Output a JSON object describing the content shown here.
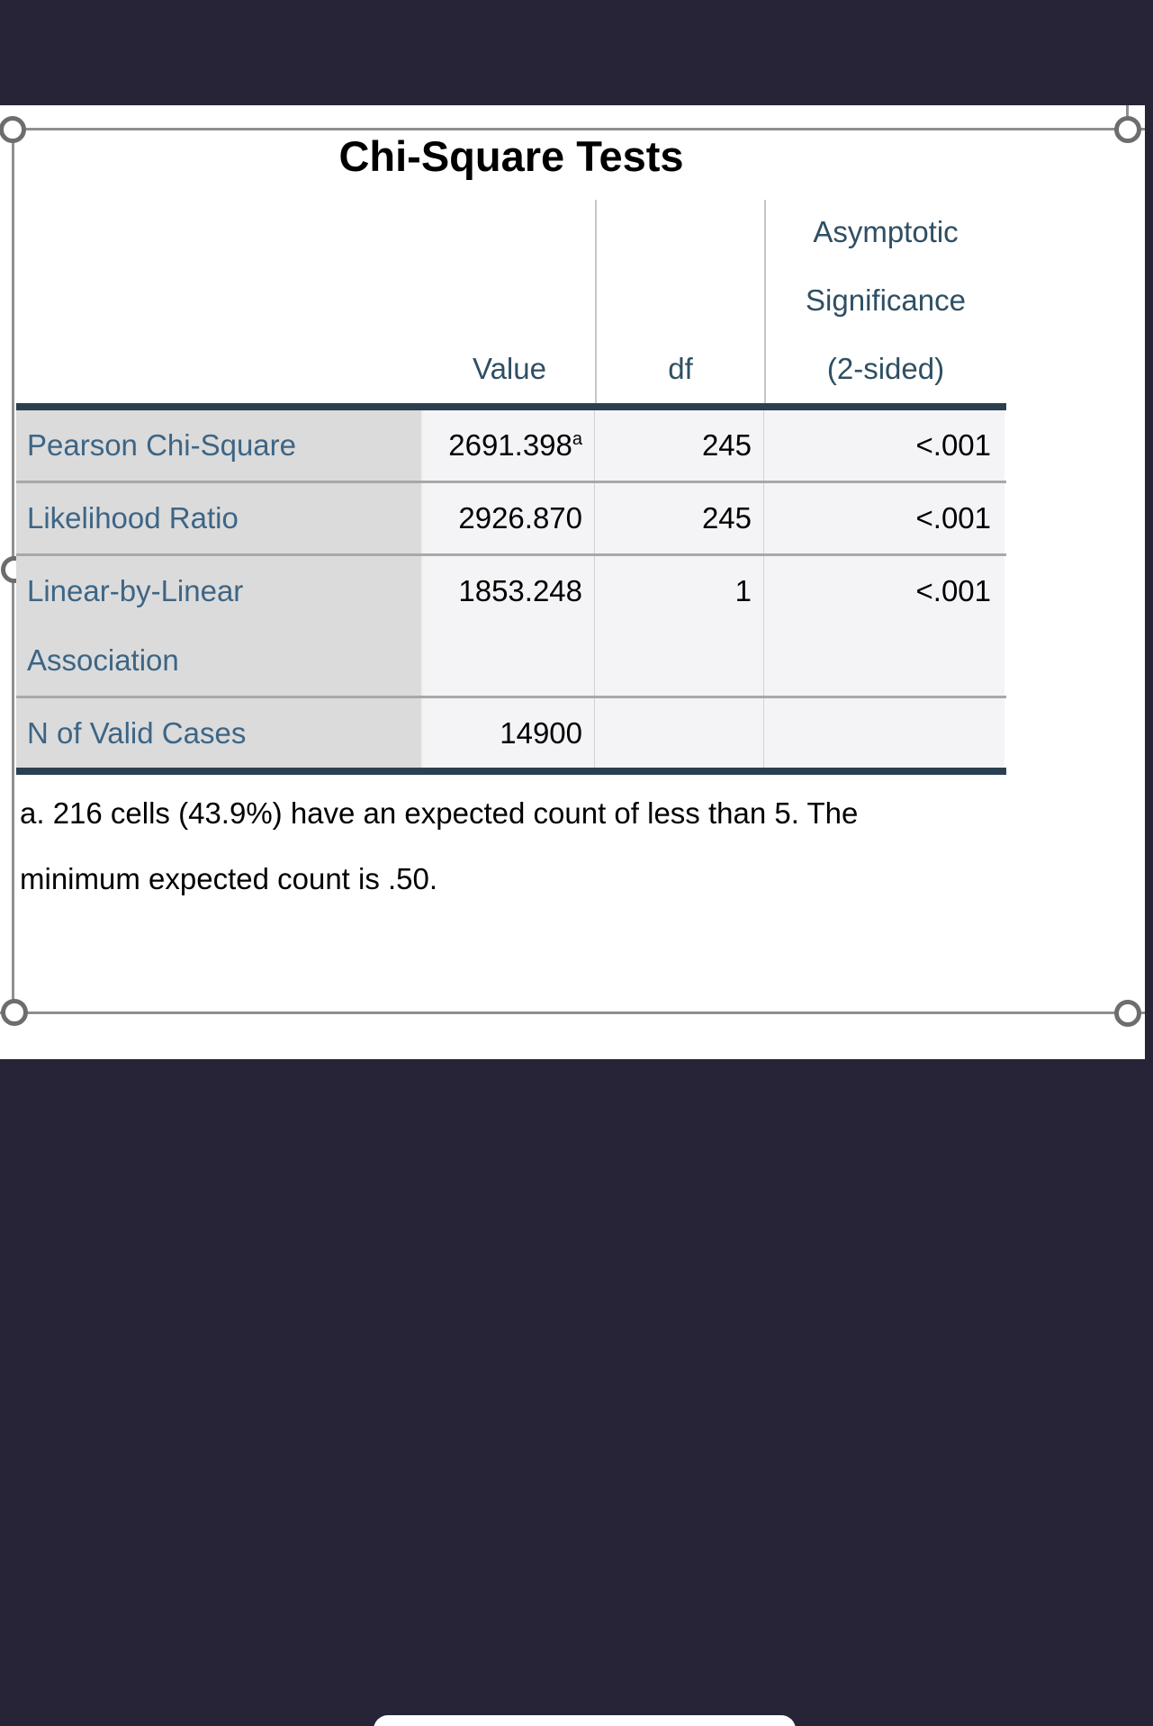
{
  "table": {
    "title": "Chi-Square Tests",
    "col_headers": {
      "value": "Value",
      "df": "df",
      "sig_lines": [
        "Asymptotic",
        "Significance",
        "(2-sided)"
      ]
    },
    "rows": [
      {
        "label": "Pearson Chi-Square",
        "label2": "",
        "value": "2691.398",
        "value_sup": "a",
        "df": "245",
        "sig": "<.001"
      },
      {
        "label": "Likelihood Ratio",
        "label2": "",
        "value": "2926.870",
        "value_sup": "",
        "df": "245",
        "sig": "<.001"
      },
      {
        "label": "Linear-by-Linear",
        "label2": "Association",
        "value": "1853.248",
        "value_sup": "",
        "df": "1",
        "sig": "<.001"
      },
      {
        "label": "N of Valid Cases",
        "label2": "",
        "value": "14900",
        "value_sup": "",
        "df": "",
        "sig": ""
      }
    ],
    "footnote_lines": [
      "a. 216 cells (43.9%) have an expected count of less than 5. The",
      "minimum expected count is .50."
    ]
  },
  "colors": {
    "page_background": "#272438",
    "canvas_background": "#ffffff",
    "label_cell_background": "#dbdbdb",
    "data_cell_background": "#f4f4f6",
    "label_text": "#3d6585",
    "header_text": "#2f4f63",
    "thick_rule": "#2a4050",
    "row_separator": "#a8a8a8",
    "selection_gray": "#8f8f8f"
  }
}
